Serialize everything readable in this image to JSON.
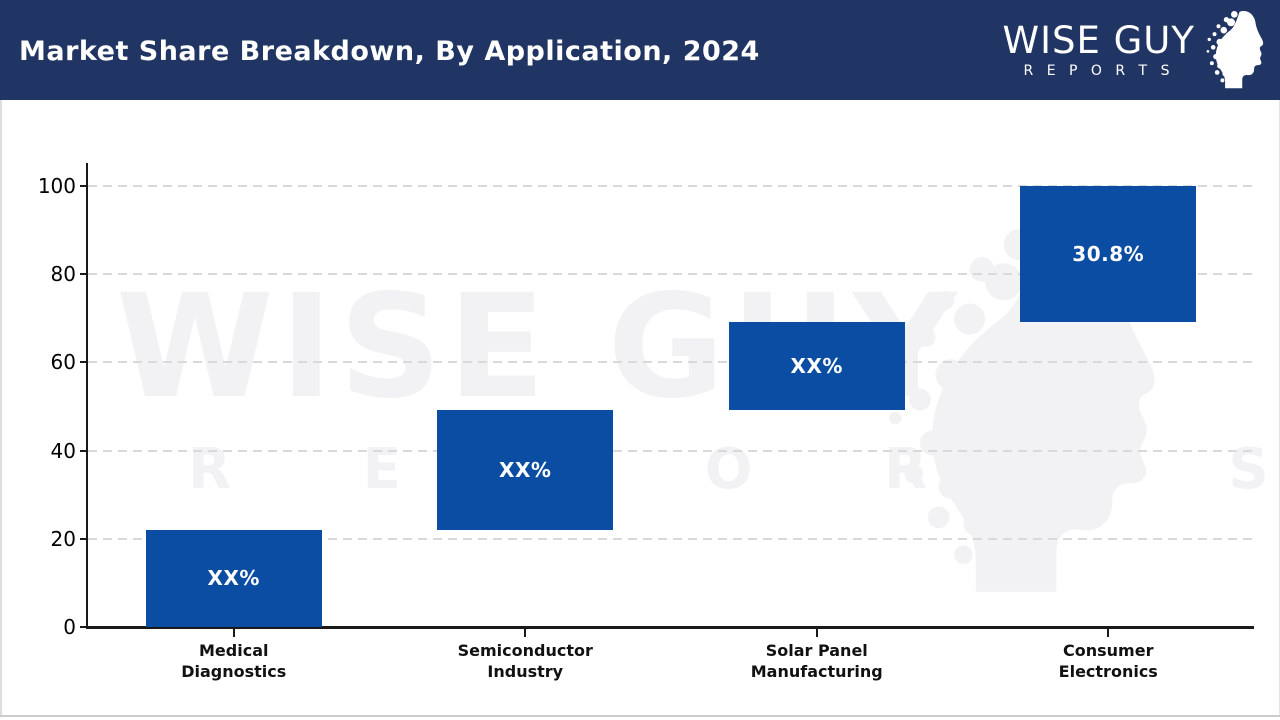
{
  "header": {
    "title": "Market Share Breakdown, By Application, 2024",
    "logo": {
      "brand": "WISE GUY",
      "tagline": "R E P O R T S"
    }
  },
  "watermark": {
    "brand": "WISE GUY",
    "tagline": "R E P O R T S"
  },
  "colors": {
    "header_bg": "#213564",
    "bar": "#0B4DA2",
    "grid": "#D9D9D9",
    "axis": "#1A1A1A",
    "watermark": "#F2F2F5",
    "title_text": "#FFFFFF",
    "bar_label_text": "#FFFFFF"
  },
  "chart_data": {
    "type": "bar",
    "subtype": "waterfall",
    "title": "Market Share Breakdown, By Application, 2024",
    "xlabel": "",
    "ylabel": "",
    "categories": [
      "Medical Diagnostics",
      "Semiconductor Industry",
      "Solar Panel Manufacturing",
      "Consumer Electronics"
    ],
    "category_label_lines": [
      [
        "Medical",
        "Diagnostics"
      ],
      [
        "Semiconductor",
        "Industry"
      ],
      [
        "Solar Panel",
        "Manufacturing"
      ],
      [
        "Consumer",
        "Electronics"
      ]
    ],
    "segments": [
      {
        "category": "Medical Diagnostics",
        "start": 0,
        "end": 22,
        "value": 22,
        "label": "XX%"
      },
      {
        "category": "Semiconductor Industry",
        "start": 22,
        "end": 49.2,
        "value": 27.2,
        "label": "XX%"
      },
      {
        "category": "Solar Panel Manufacturing",
        "start": 49.2,
        "end": 69.2,
        "value": 20,
        "label": "XX%"
      },
      {
        "category": "Consumer Electronics",
        "start": 69.2,
        "end": 100,
        "value": 30.8,
        "label": "30.8%"
      }
    ],
    "yticks": [
      0,
      20,
      40,
      60,
      80,
      100
    ],
    "ylim": [
      0,
      105
    ],
    "grid": "dashed-horizontal",
    "legend": "none"
  }
}
